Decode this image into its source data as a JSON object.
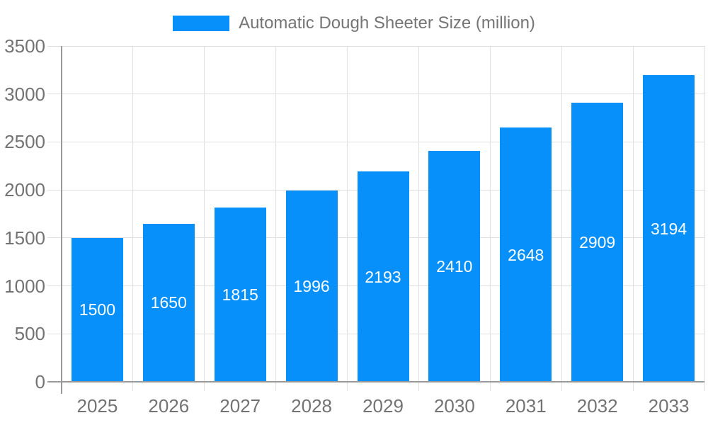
{
  "legend": {
    "label": "Automatic Dough Sheeter Size (million)"
  },
  "colors": {
    "background": "#ffffff",
    "bar": "#0890fa",
    "legend_text": "#757575",
    "tick_text": "#737373",
    "axis_line": "#999999",
    "grid_line": "#e0e0e0",
    "bar_label_text": "#ffffff"
  },
  "chart_data": {
    "type": "bar",
    "title": "Automatic Dough Sheeter Size (million)",
    "legend_entries": [
      "Automatic Dough Sheeter Size (million)"
    ],
    "legend_position": "top-center",
    "categories": [
      "2025",
      "2026",
      "2027",
      "2028",
      "2029",
      "2030",
      "2031",
      "2032",
      "2033"
    ],
    "values": [
      1500,
      1650,
      1815,
      1996,
      2193,
      2410,
      2648,
      2909,
      3194
    ],
    "xlabel": "",
    "ylabel": "",
    "ylim": [
      0,
      3500
    ],
    "yticks": [
      0,
      500,
      1000,
      1500,
      2000,
      2500,
      3000,
      3500
    ],
    "grid": true,
    "bar_labels_inside": true,
    "bar_label_position": "center"
  }
}
